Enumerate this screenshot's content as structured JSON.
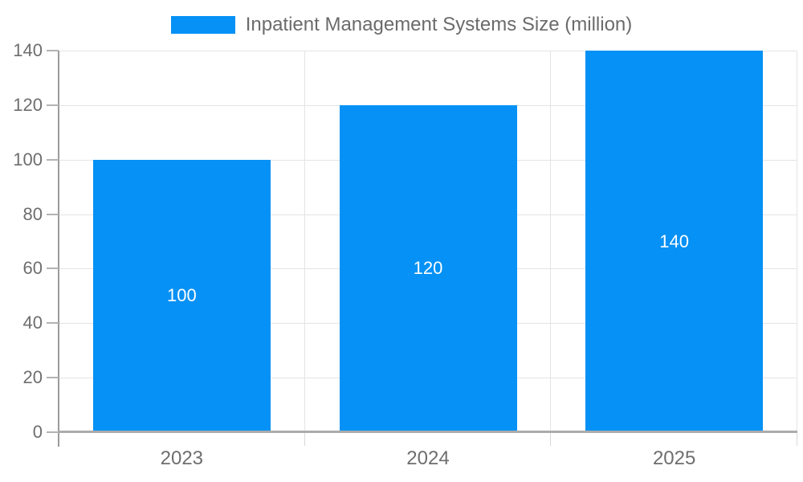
{
  "chart_data": {
    "type": "bar",
    "title": "Inpatient Management Systems Size (million)",
    "categories": [
      "2023",
      "2024",
      "2025"
    ],
    "series": [
      {
        "name": "Inpatient Management Systems Size (million)",
        "values": [
          100,
          120,
          140
        ]
      }
    ],
    "values": [
      100,
      120,
      140
    ],
    "bar_labels": [
      "100",
      "120",
      "140"
    ],
    "xlabel": "",
    "ylabel": "",
    "ylim": [
      0,
      140
    ],
    "yticks": [
      0,
      20,
      40,
      60,
      80,
      100,
      120,
      140
    ],
    "grid": true,
    "legend_position": "top",
    "colors": {
      "bar": "#0591F5",
      "bar_label": "#ffffff",
      "axis_text": "#6e6e6e",
      "legend_text": "#6b6b6b",
      "gridline": "#e4e4e4",
      "boundary_tick": "#d9d9d9",
      "axis_line_x": "#ababab",
      "axis_line_y": "#9b9b9b",
      "ytick_mark": "#b3b3b3"
    }
  }
}
